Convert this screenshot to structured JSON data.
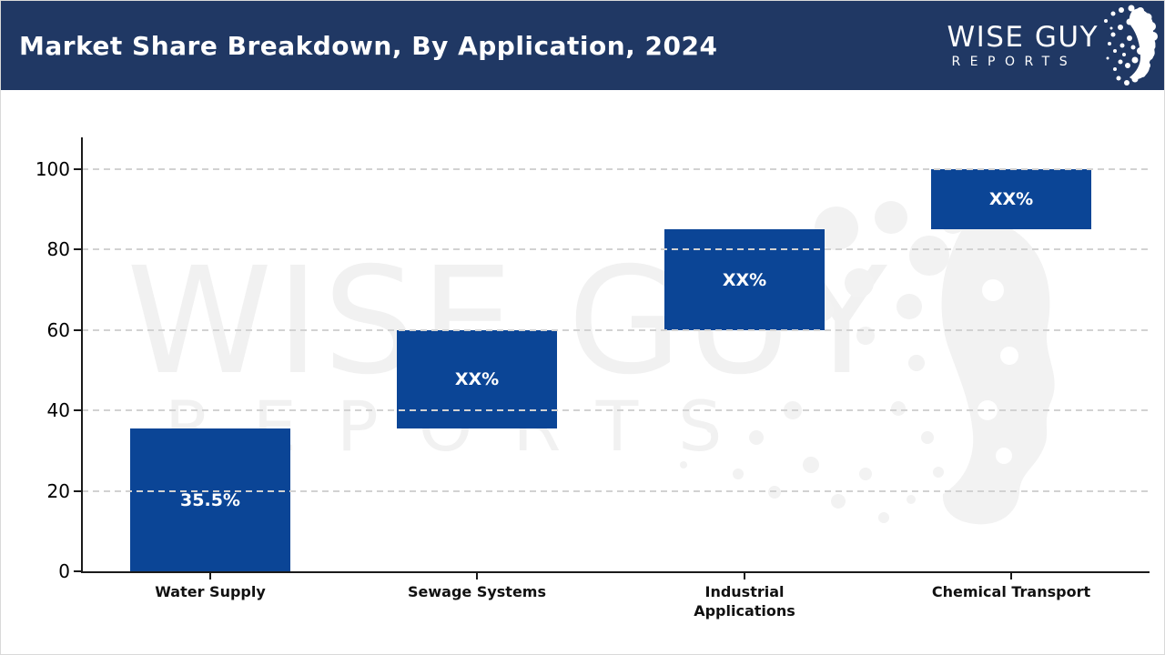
{
  "header": {
    "title": "Market Share Breakdown, By Application, 2024",
    "bg_color": "#203864",
    "logo": {
      "line1": "WISE GUY",
      "line2": "REPORTS",
      "head_icon": "dotted-head-profile"
    }
  },
  "watermark": {
    "line1": "WISE GUY",
    "line2": "REPORTS",
    "head_icon": "dotted-head-profile"
  },
  "chart_data": {
    "type": "bar",
    "subtype": "floating-waterfall",
    "title": "Market Share Breakdown, By Application, 2024",
    "categories": [
      "Water Supply",
      "Sewage Systems",
      "Industrial Applications",
      "Chemical Transport"
    ],
    "bars": [
      {
        "category": "Water Supply",
        "start": 0,
        "end": 35.5,
        "label": "35.5%"
      },
      {
        "category": "Sewage Systems",
        "start": 35.5,
        "end": 60,
        "label": "XX%"
      },
      {
        "category": "Industrial Applications",
        "start": 60,
        "end": 85,
        "label": "XX%"
      },
      {
        "category": "Chemical Transport",
        "start": 85,
        "end": 100,
        "label": "XX%"
      }
    ],
    "ylim": [
      0,
      100
    ],
    "yticks": [
      0,
      20,
      40,
      60,
      80,
      100
    ],
    "xlabel": "",
    "ylabel": "",
    "grid": "horizontal-dashed",
    "legend": "none",
    "bar_color": "#0B4596",
    "bar_label_color": "#ffffff",
    "axis_color": "#1a1a1a",
    "gridline_color": "#d2d2d2"
  }
}
